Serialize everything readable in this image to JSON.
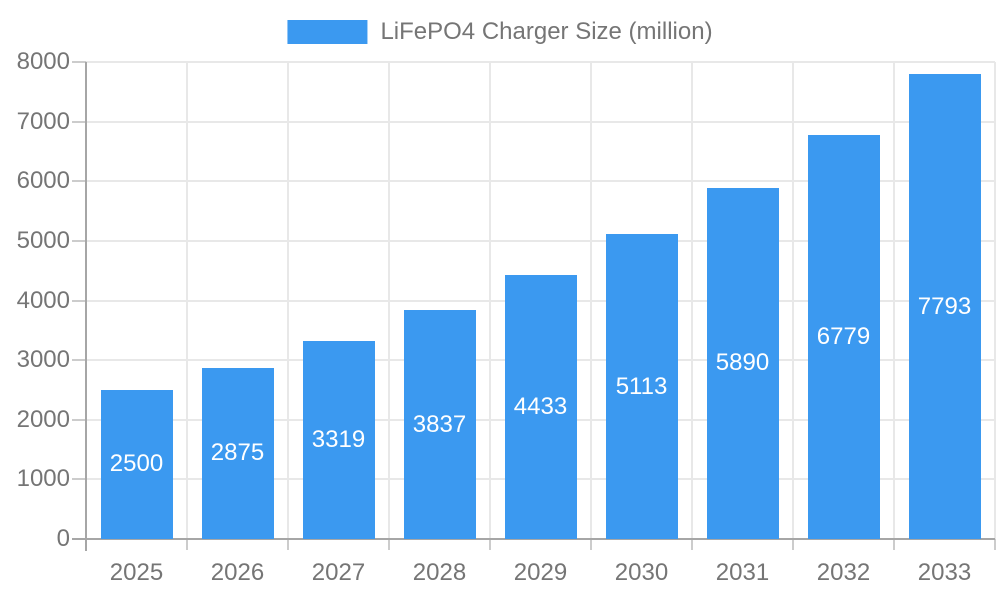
{
  "legend": {
    "label": "LiFePO4 Charger Size (million)"
  },
  "chart_data": {
    "type": "bar",
    "title": "LiFePO4 Charger Size (million)",
    "categories": [
      "2025",
      "2026",
      "2027",
      "2028",
      "2029",
      "2030",
      "2031",
      "2032",
      "2033"
    ],
    "values": [
      2500,
      2875,
      3319,
      3837,
      4433,
      5113,
      5890,
      6779,
      7793
    ],
    "series_name": "LiFePO4 Charger Size (million)",
    "xlabel": "",
    "ylabel": "",
    "ylim": [
      0,
      8000
    ],
    "yticks": [
      0,
      1000,
      2000,
      3000,
      4000,
      5000,
      6000,
      7000,
      8000
    ],
    "grid": true,
    "legend_position": "top-center",
    "value_labels": "inside-center",
    "colors": {
      "bar": "#3B99F0",
      "axis_text": "#757575",
      "axis_line": "#a6a6a6",
      "gridline": "#e8e8e8",
      "tick": "#cccccc",
      "value_label": "#ffffff",
      "background": "#ffffff"
    }
  }
}
